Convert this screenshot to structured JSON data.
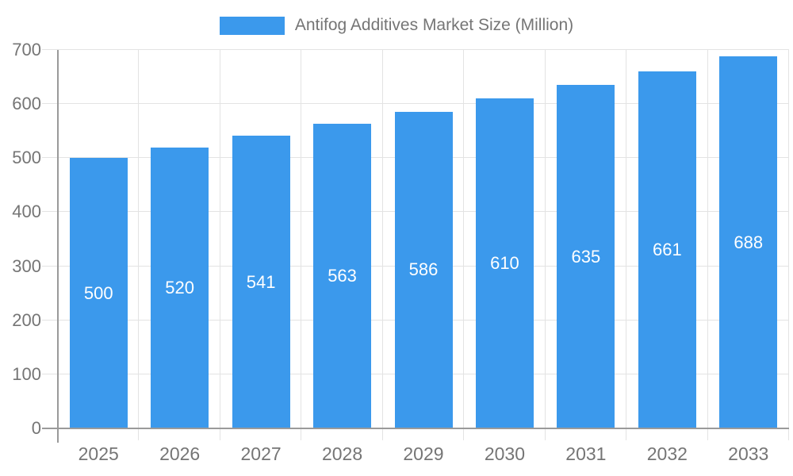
{
  "legend": {
    "label": "Antifog Additives Market Size (Million)"
  },
  "chart_data": {
    "type": "bar",
    "title": "Antifog Additives Market Size (Million)",
    "categories": [
      "2025",
      "2026",
      "2027",
      "2028",
      "2029",
      "2030",
      "2031",
      "2032",
      "2033"
    ],
    "values": [
      500,
      520,
      541,
      563,
      586,
      610,
      635,
      661,
      688
    ],
    "xlabel": "",
    "ylabel": "",
    "ylim": [
      0,
      700
    ],
    "ytick_step": 100,
    "yticks": [
      0,
      100,
      200,
      300,
      400,
      500,
      600,
      700
    ],
    "grid": true,
    "legend_position": "top-center",
    "bar_labels": "inside-center"
  },
  "colors": {
    "bar": "#3B99EC",
    "grid": "#e3e3e3",
    "tick": "#d6d6d6",
    "axis": "#9a9a9a",
    "tick_text": "#757575",
    "legend_text": "#757575",
    "bar_label": "#ffffff",
    "background": "#ffffff"
  }
}
